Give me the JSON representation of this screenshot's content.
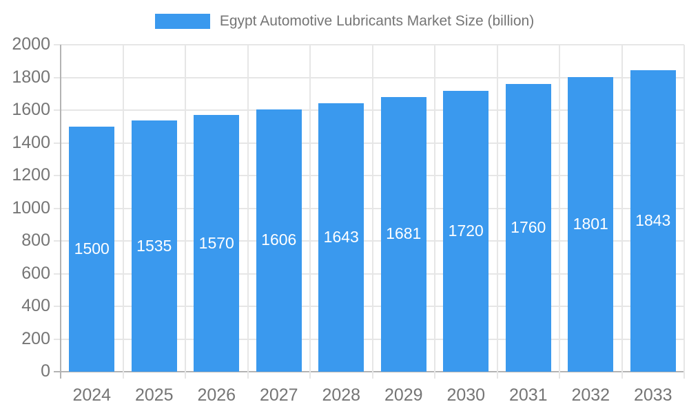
{
  "legend": {
    "label": "Egypt Automotive Lubricants Market Size (billion)"
  },
  "chart_data": {
    "type": "bar",
    "title": "Egypt Automotive Lubricants Market Size (billion)",
    "series": [
      {
        "name": "Egypt Automotive Lubricants Market Size (billion)",
        "values": [
          1500,
          1535,
          1570,
          1606,
          1643,
          1681,
          1720,
          1760,
          1801,
          1843
        ]
      }
    ],
    "categories": [
      "2024",
      "2025",
      "2026",
      "2027",
      "2028",
      "2029",
      "2030",
      "2031",
      "2032",
      "2033"
    ],
    "xlabel": "",
    "ylabel": "",
    "ylim": [
      0,
      2000
    ],
    "yticks": [
      0,
      200,
      400,
      600,
      800,
      1000,
      1200,
      1400,
      1600,
      1800,
      2000
    ],
    "grid": true,
    "legend_position": "top",
    "bar_labels_inside": true
  },
  "colors": {
    "bar": "#3a99ee",
    "bar_label_text": "#ffffff",
    "gridline": "#e6e6e6",
    "axis_line": "#b3b3b3",
    "tick_text": "#757575",
    "legend_text": "#757575",
    "background": "#ffffff"
  }
}
